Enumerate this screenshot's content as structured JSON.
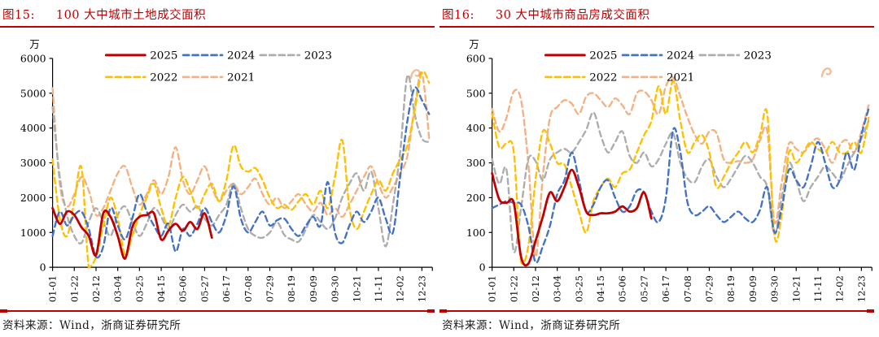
{
  "source_note": "资料来源：Wind，浙商证券研究所",
  "chart_data": [
    {
      "type": "line",
      "fig_label": "图15:",
      "title": "100 大中城市土地成交面积",
      "unit": "万",
      "ylim": [
        0,
        6000
      ],
      "y_ticks": [
        0,
        1000,
        2000,
        3000,
        4000,
        5000,
        6000
      ],
      "grid": false,
      "legend_position": "top",
      "x_tick_labels": [
        "01-01",
        "01-22",
        "02-12",
        "03-04",
        "03-25",
        "04-15",
        "05-06",
        "05-27",
        "06-17",
        "07-08",
        "07-29",
        "08-19",
        "09-09",
        "09-30",
        "10-21",
        "11-11",
        "12-02",
        "12-23"
      ],
      "series": [
        {
          "name": "2025",
          "color": "#C00000",
          "line_style": "solid",
          "values": [
            1700,
            1250,
            1600,
            1500,
            1150,
            900,
            350,
            1550,
            1450,
            900,
            250,
            1150,
            1450,
            1500,
            1550,
            800,
            1050,
            1250,
            1050,
            1300,
            1100,
            1550,
            850
          ]
        },
        {
          "name": "2024",
          "color": "#4472C4",
          "line_style": "dashed",
          "values": [
            900,
            1600,
            1200,
            1500,
            1600,
            1100,
            300,
            600,
            1700,
            1200,
            800,
            1400,
            2100,
            1600,
            1200,
            900,
            1250,
            450,
            1100,
            900,
            1250,
            1700,
            1300,
            1000,
            1500,
            2325,
            1400,
            1000,
            1300,
            1600,
            1200,
            1350,
            1400,
            1100,
            900,
            1200,
            1450,
            1200,
            2450,
            1000,
            700,
            1200,
            1600,
            1300,
            1600,
            2000,
            1400,
            1000,
            2600,
            4200,
            5150,
            4800,
            4400
          ]
        },
        {
          "name": "2023",
          "color": "#ADADAD",
          "line_style": "dashed",
          "values": [
            4600,
            2600,
            1500,
            900,
            700,
            1300,
            1700,
            1300,
            900,
            1500,
            1750,
            1300,
            900,
            1250,
            1700,
            1450,
            1100,
            1500,
            1800,
            1600,
            1750,
            1400,
            1200,
            1500,
            1800,
            2400,
            1700,
            1100,
            900,
            850,
            1000,
            1300,
            930,
            800,
            740,
            1100,
            1500,
            1300,
            1100,
            1400,
            2000,
            2400,
            2700,
            2200,
            2750,
            1700,
            600,
            1800,
            3300,
            5500,
            4400,
            3700,
            3600
          ]
        },
        {
          "name": "2022",
          "color": "#FFC000",
          "line_style": "dashed",
          "values": [
            3100,
            1400,
            900,
            1900,
            2850,
            0,
            300,
            1200,
            2000,
            1400,
            350,
            900,
            1500,
            2000,
            2400,
            1700,
            1200,
            2000,
            2600,
            2200,
            1700,
            2100,
            2400,
            1900,
            2500,
            3500,
            2900,
            2750,
            2850,
            2500,
            2000,
            1700,
            1800,
            1650,
            1900,
            2100,
            1800,
            2200,
            1700,
            2600,
            3650,
            1700,
            1100,
            1600,
            2100,
            2500,
            2200,
            2700,
            3100,
            3500,
            4500,
            5600,
            5300
          ]
        },
        {
          "name": "2021",
          "color": "#F4B183",
          "line_style": "dashed",
          "values": [
            5150,
            2400,
            1750,
            2100,
            2600,
            2200,
            1500,
            1700,
            2200,
            2700,
            2900,
            2300,
            1800,
            2100,
            2500,
            2100,
            2600,
            3450,
            2500,
            2100,
            2500,
            2900,
            2300,
            1900,
            2200,
            2400,
            2100,
            2300,
            2550,
            2100,
            1800,
            2000,
            1700,
            1900,
            2100,
            1800,
            1600,
            1850,
            1500,
            1700,
            1450,
            1800,
            2200,
            2600,
            2900,
            2400,
            2000,
            2300,
            2700,
            3200,
            4600,
            5580,
            3700
          ]
        }
      ]
    },
    {
      "type": "line",
      "fig_label": "图16:",
      "title": "30 大中城市商品房成交面积",
      "unit": "万",
      "ylim": [
        0,
        600
      ],
      "y_ticks": [
        0,
        100,
        200,
        300,
        400,
        500,
        600
      ],
      "grid": false,
      "legend_position": "top",
      "x_tick_labels": [
        "01-01",
        "01-22",
        "02-12",
        "03-04",
        "03-25",
        "04-15",
        "05-06",
        "05-27",
        "06-17",
        "07-08",
        "07-29",
        "08-19",
        "09-09",
        "09-30",
        "10-21",
        "11-11",
        "12-02",
        "12-23"
      ],
      "series": [
        {
          "name": "2025",
          "color": "#C00000",
          "line_style": "solid",
          "values": [
            270,
            195,
            185,
            185,
            30,
            10,
            75,
            145,
            215,
            190,
            230,
            280,
            230,
            160,
            150,
            155,
            155,
            160,
            175,
            160,
            170,
            215,
            140
          ]
        },
        {
          "name": "2024",
          "color": "#4472C4",
          "line_style": "dashed",
          "values": [
            170,
            180,
            190,
            185,
            180,
            120,
            15,
            60,
            120,
            210,
            250,
            330,
            250,
            160,
            180,
            230,
            250,
            200,
            160,
            175,
            220,
            215,
            160,
            130,
            200,
            395,
            330,
            185,
            150,
            160,
            175,
            150,
            130,
            145,
            160,
            140,
            130,
            165,
            230,
            100,
            170,
            280,
            250,
            230,
            290,
            360,
            300,
            230,
            250,
            330,
            280,
            380,
            455
          ]
        },
        {
          "name": "2023",
          "color": "#ADADAD",
          "line_style": "dashed",
          "values": [
            310,
            240,
            280,
            45,
            170,
            310,
            305,
            250,
            310,
            330,
            340,
            330,
            360,
            395,
            445,
            380,
            330,
            360,
            390,
            320,
            300,
            330,
            290,
            310,
            355,
            385,
            300,
            255,
            245,
            290,
            310,
            260,
            230,
            255,
            290,
            320,
            300,
            260,
            230,
            95,
            200,
            300,
            250,
            190,
            230,
            260,
            290,
            270,
            250,
            290,
            330,
            370,
            420
          ]
        },
        {
          "name": "2022",
          "color": "#FFC000",
          "line_style": "dashed",
          "values": [
            440,
            345,
            355,
            330,
            15,
            60,
            250,
            390,
            355,
            300,
            295,
            230,
            160,
            100,
            190,
            230,
            255,
            230,
            270,
            280,
            330,
            380,
            420,
            520,
            440,
            535,
            420,
            330,
            360,
            380,
            330,
            230,
            260,
            300,
            330,
            360,
            330,
            380,
            440,
            90,
            150,
            330,
            300,
            330,
            360,
            340,
            330,
            360,
            330,
            330,
            360,
            330,
            430
          ]
        },
        {
          "name": "2021",
          "color": "#F4B183",
          "line_style": "dashed",
          "values": [
            455,
            390,
            430,
            505,
            480,
            300,
            30,
            260,
            430,
            460,
            480,
            470,
            440,
            490,
            500,
            480,
            460,
            485,
            465,
            440,
            500,
            505,
            480,
            440,
            520,
            545,
            490,
            430,
            380,
            355,
            390,
            385,
            310,
            300,
            305,
            300,
            310,
            365,
            390,
            130,
            245,
            355,
            340,
            330,
            355,
            370,
            340,
            300,
            350,
            365,
            330,
            390,
            465
          ]
        }
      ]
    }
  ]
}
